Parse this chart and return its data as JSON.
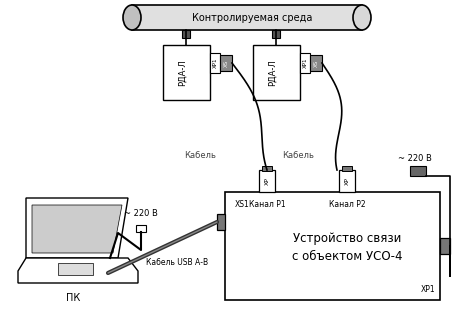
{
  "background_color": "#ffffff",
  "pipe_label": "Контролируемая среда",
  "sensor1_label": "РДА-Л",
  "sensor2_label": "РДА-Л",
  "cable1_label": "Кабель",
  "cable2_label": "Кабель",
  "channel1_label": "Канал Р1",
  "channel2_label": "Канал Р2",
  "main_box_label1": "Устройство связи",
  "main_box_label2": "с объектом УСО-4",
  "xs1_label": "XS1",
  "xp1_label": "XP1",
  "power_label_right": "~ 220 В",
  "power_label_pc": "~ 220 В",
  "pc_label": "ПК",
  "usb_label": "Кабель USB А-В",
  "lc": "#000000",
  "lc_gray": "#999999"
}
